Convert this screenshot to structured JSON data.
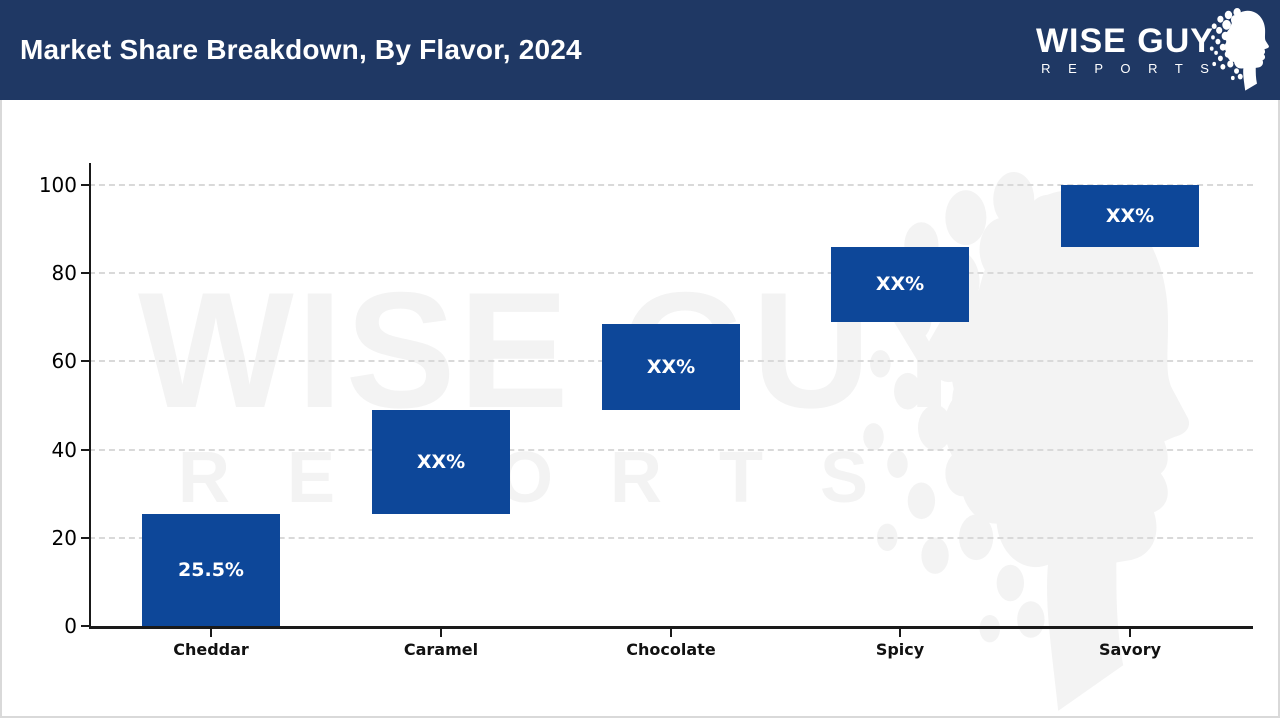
{
  "header": {
    "title": "Market Share Breakdown, By Flavor, 2024",
    "logo": {
      "line1": "WISE GUY",
      "line2": "REPORTS"
    }
  },
  "watermark": {
    "line1": "WISE GUY",
    "line2": "REPORTS"
  },
  "colors": {
    "header_bg": "#1f3864",
    "bar": "#0d4799",
    "grid": "#d9d9d9",
    "axis": "#1a1a1a",
    "watermark": "#f3f3f3",
    "bar_label_text": "#ffffff"
  },
  "chart_data": {
    "type": "bar",
    "subtype": "waterfall-floating-bars",
    "title": "Market Share Breakdown, By Flavor, 2024",
    "categories": [
      "Cheddar",
      "Caramel",
      "Chocolate",
      "Spicy",
      "Savory"
    ],
    "segments": [
      {
        "category": "Cheddar",
        "start": 0,
        "end": 25.5,
        "label": "25.5%"
      },
      {
        "category": "Caramel",
        "start": 25.5,
        "end": 49,
        "label": "XX%"
      },
      {
        "category": "Chocolate",
        "start": 49,
        "end": 68.5,
        "label": "XX%"
      },
      {
        "category": "Spicy",
        "start": 69,
        "end": 86,
        "label": "XX%"
      },
      {
        "category": "Savory",
        "start": 86,
        "end": 100,
        "label": "XX%"
      }
    ],
    "yticks": [
      0,
      20,
      40,
      60,
      80,
      100
    ],
    "ylim": [
      0,
      105
    ],
    "xlabel": "",
    "ylabel": "",
    "grid": "dashed-horizontal",
    "legend": "none"
  }
}
